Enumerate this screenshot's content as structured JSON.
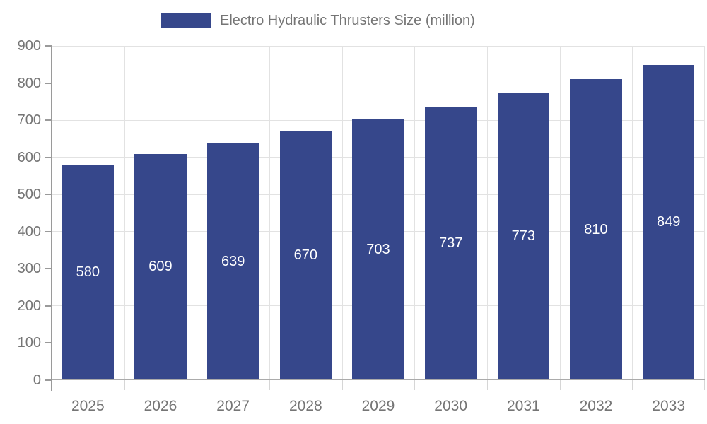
{
  "legend": {
    "label": "Electro Hydraulic Thrusters Size (million)"
  },
  "chart_data": {
    "type": "bar",
    "title": "Electro Hydraulic Thrusters Size (million)",
    "categories": [
      "2025",
      "2026",
      "2027",
      "2028",
      "2029",
      "2030",
      "2031",
      "2032",
      "2033"
    ],
    "values": [
      580,
      609,
      639,
      670,
      703,
      737,
      773,
      810,
      849
    ],
    "xlabel": "",
    "ylabel": "",
    "ylim": [
      0,
      900
    ],
    "yticks": [
      0,
      100,
      200,
      300,
      400,
      500,
      600,
      700,
      800,
      900
    ],
    "grid": true,
    "legend_position": "top",
    "colors": {
      "bar": "#36478B",
      "bar_value_label": "#ffffff",
      "grid": "#e2e2e2",
      "axis": "#9a9a9a",
      "baseline": "#ababab",
      "tick_label": "#757575",
      "legend_text": "#757575"
    }
  }
}
